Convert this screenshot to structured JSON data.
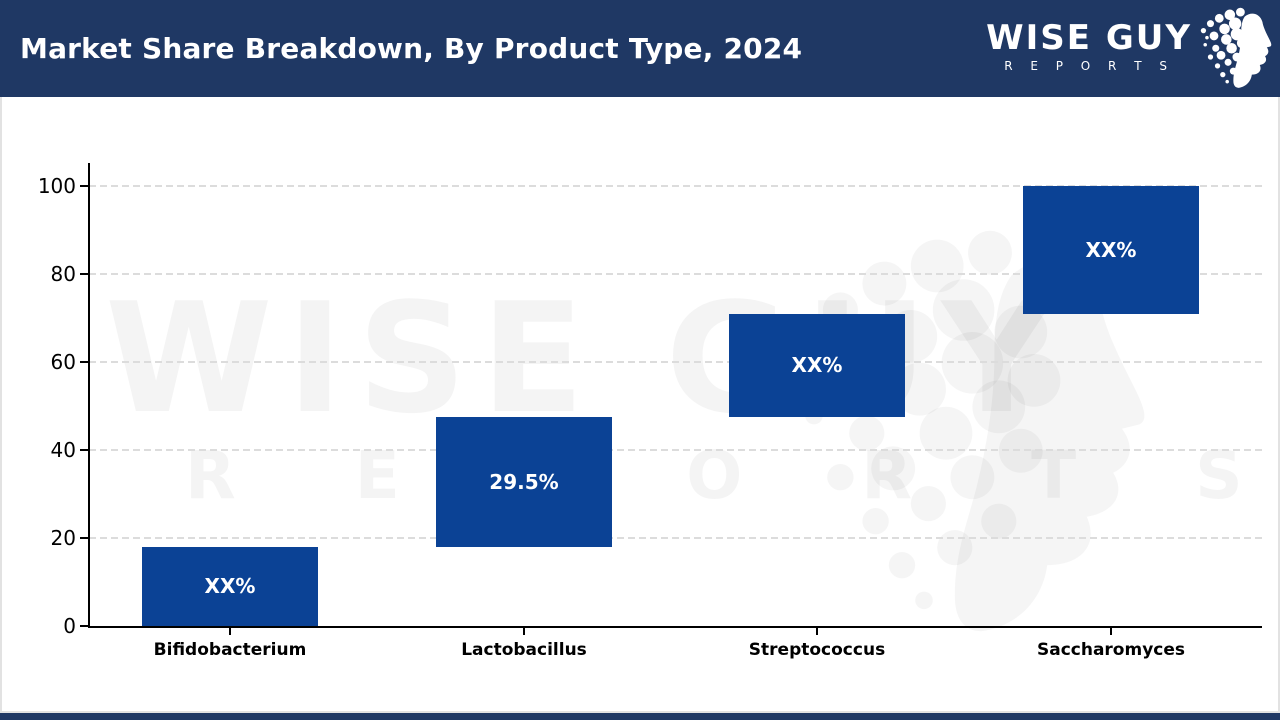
{
  "header": {
    "title": "Market Share Breakdown, By Product Type, 2024",
    "bg_color": "#1f3864",
    "logo": {
      "line1": "WISE GUY",
      "line2": "R E P O R T S"
    }
  },
  "watermark": {
    "line1": "WISE GUY",
    "line2": "R E P O R T S"
  },
  "chart_data": {
    "type": "bar",
    "variant": "floating-waterfall",
    "title": "Market Share Breakdown, By Product Type, 2024",
    "categories": [
      "Bifidobacterium",
      "Lactobacillus",
      "Streptococcus",
      "Saccharomyces"
    ],
    "bars": [
      {
        "category": "Bifidobacterium",
        "start": 0,
        "end": 18,
        "label": "XX%"
      },
      {
        "category": "Lactobacillus",
        "start": 18,
        "end": 47.5,
        "label": "29.5%"
      },
      {
        "category": "Streptococcus",
        "start": 47.5,
        "end": 71,
        "label": "XX%"
      },
      {
        "category": "Saccharomyces",
        "start": 71,
        "end": 100,
        "label": "XX%"
      }
    ],
    "xlabel": "",
    "ylabel": "",
    "ylim": [
      0,
      100
    ],
    "yticks": [
      0,
      20,
      40,
      60,
      80,
      100
    ],
    "grid": {
      "horizontal": true,
      "style": "dashed",
      "color": "#dcdcdc"
    },
    "legend": "none",
    "bar_color": "#0b4295",
    "bar_label_color": "#ffffff"
  }
}
